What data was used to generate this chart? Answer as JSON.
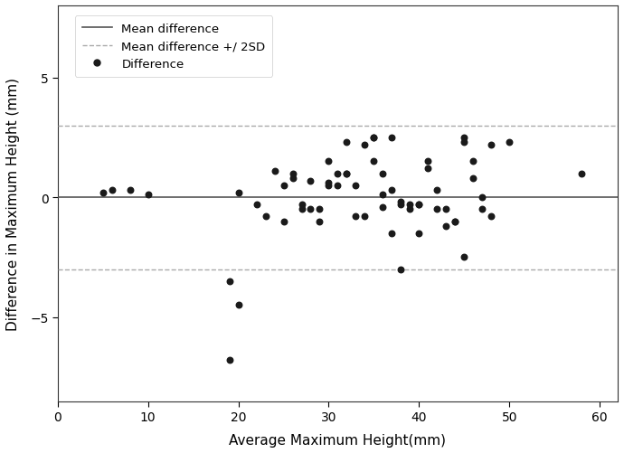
{
  "x_data": [
    5,
    6,
    8,
    10,
    19,
    20,
    22,
    24,
    25,
    26,
    27,
    28,
    29,
    30,
    30,
    31,
    32,
    32,
    33,
    34,
    35,
    35,
    36,
    36,
    37,
    37,
    38,
    38,
    39,
    40,
    40,
    41,
    42,
    43,
    44,
    45,
    45,
    46,
    47,
    48,
    50,
    58,
    19,
    20,
    23,
    25,
    26,
    27,
    28,
    29,
    30,
    31,
    32,
    33,
    34,
    35,
    36,
    37,
    38,
    39,
    40,
    41,
    42,
    43,
    44,
    45,
    46,
    47,
    48
  ],
  "y_data": [
    0.2,
    0.3,
    0.3,
    0.1,
    -6.8,
    -4.5,
    -0.3,
    1.1,
    0.5,
    0.8,
    -0.3,
    0.7,
    -0.5,
    0.6,
    1.5,
    1.0,
    1.0,
    2.3,
    0.5,
    2.2,
    1.5,
    2.5,
    1.0,
    0.1,
    0.3,
    2.5,
    -0.2,
    -0.3,
    -0.5,
    -0.3,
    -1.5,
    1.2,
    0.3,
    -0.5,
    -1.0,
    2.5,
    -2.5,
    1.5,
    0.0,
    2.2,
    2.3,
    1.0,
    -3.5,
    0.2,
    -0.8,
    -1.0,
    1.0,
    -0.5,
    -0.5,
    -1.0,
    0.5,
    0.5,
    1.0,
    -0.8,
    -0.8,
    2.5,
    -0.4,
    -1.5,
    -3.0,
    -0.3,
    -0.3,
    1.5,
    -0.5,
    -1.2,
    -1.0,
    2.3,
    0.8,
    -0.5,
    -0.8
  ],
  "mean_diff": 0.0,
  "upper_limit": 3.0,
  "lower_limit": -3.0,
  "xlabel": "Average Maximum Height(mm)",
  "ylabel": "Difference in Maximum Height (mm)",
  "xlim": [
    0,
    62
  ],
  "ylim": [
    -8.5,
    8.0
  ],
  "xticks": [
    0,
    10,
    20,
    30,
    40,
    50,
    60
  ],
  "yticks": [
    -5,
    0,
    5
  ],
  "legend_mean": "Mean difference",
  "legend_sd": "Mean difference +/ 2SD",
  "legend_diff": "Difference",
  "background_color": "#ffffff",
  "dot_color": "#1a1a1a",
  "line_color": "#555555",
  "dashed_color": "#aaaaaa",
  "dot_size": 22
}
